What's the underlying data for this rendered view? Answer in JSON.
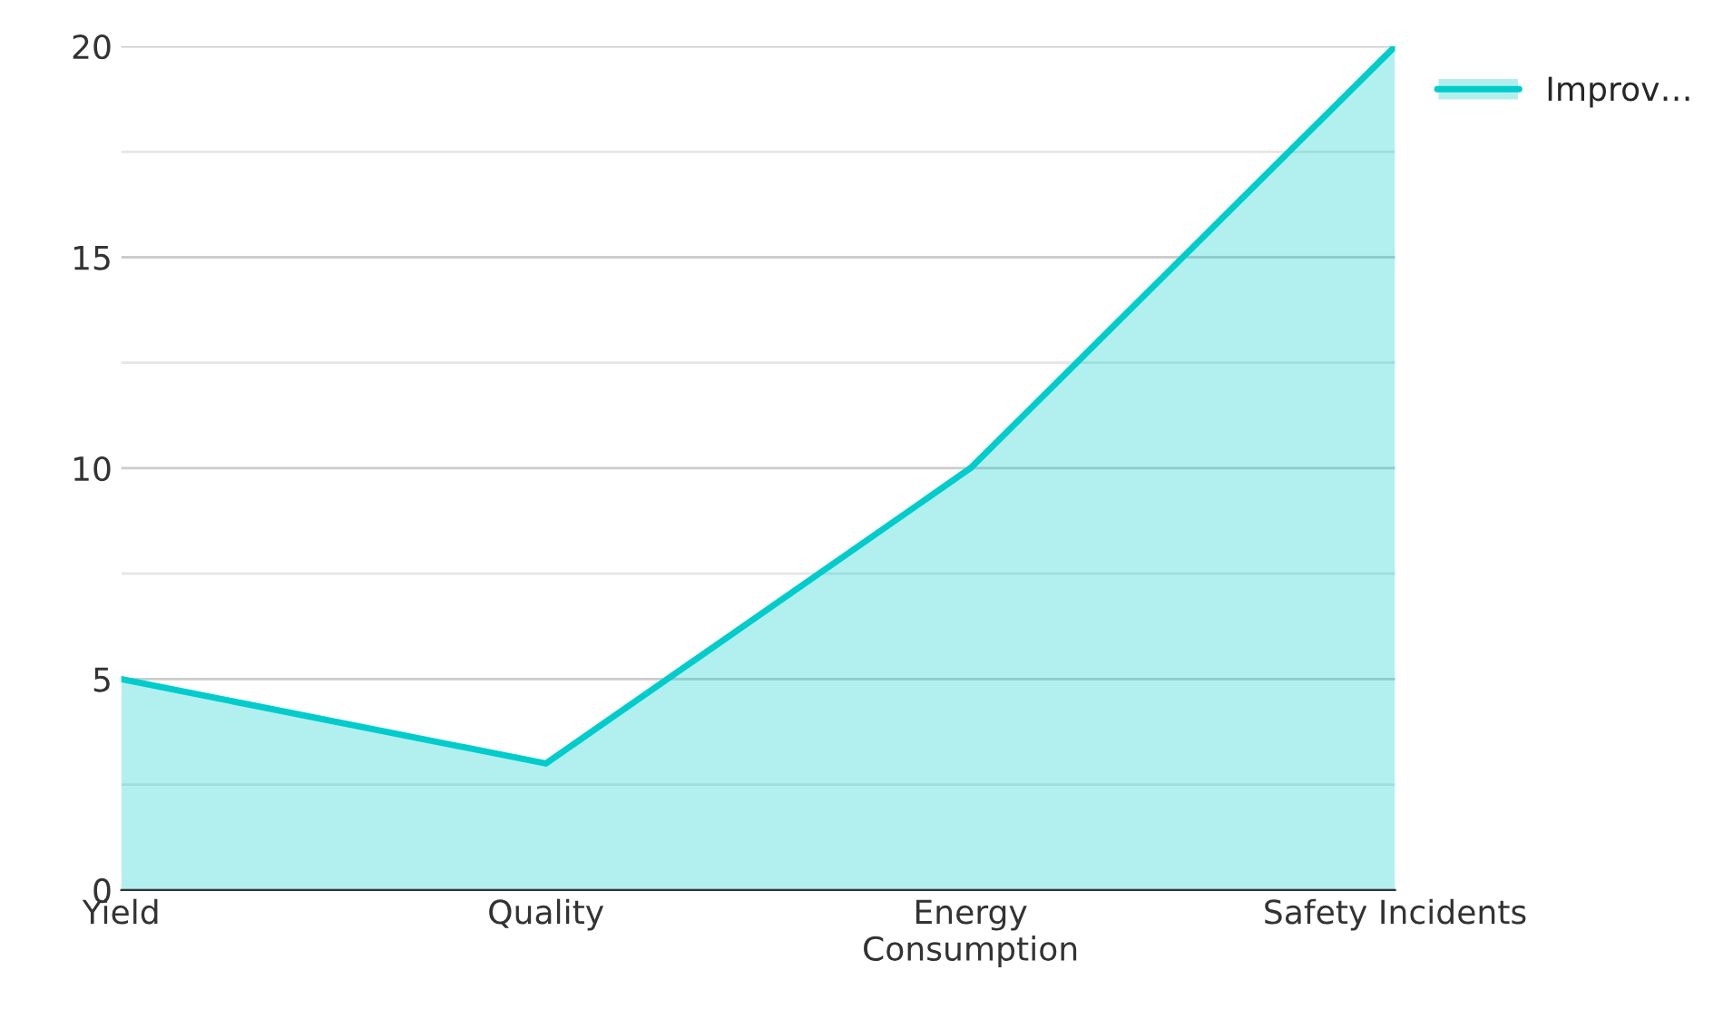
{
  "chart_data": {
    "type": "area",
    "categories": [
      "Yield",
      "Quality",
      "Energy\nConsumption",
      "Safety Incidents"
    ],
    "series": [
      {
        "name": "Improv…",
        "color": "#00cccc",
        "values": [
          5,
          3,
          10,
          20
        ]
      }
    ],
    "ylim": [
      0,
      20
    ],
    "yticks": [
      0,
      {
        "value": 2.5,
        "label": null
      },
      5,
      {
        "value": 7.5,
        "label": null
      },
      10,
      {
        "value": 12.5,
        "label": null
      },
      15,
      {
        "value": 17.5,
        "label": null
      },
      20
    ],
    "grid": "y",
    "legend": "top right"
  }
}
